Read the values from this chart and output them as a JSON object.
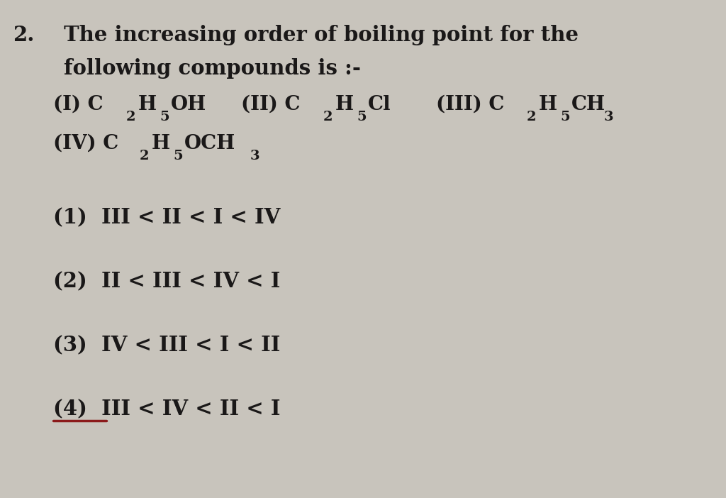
{
  "background_color": "#c8c4bc",
  "question_number": "2.",
  "title_line1": "The increasing order of boiling point for the",
  "title_line2": "following compounds is :-",
  "text_color": "#1a1818",
  "underline_color": "#8b1a1a",
  "fontsize_title": 21,
  "fontsize_options": 21,
  "fontsize_chem": 20,
  "fontsize_sub": 14,
  "option_numbers": [
    "(1)",
    "(2)",
    "(3)",
    "(4)"
  ],
  "option_texts": [
    "III < II < I < IV",
    "II < III < IV < I",
    "IV < III < I < II",
    "III < IV < II < I"
  ],
  "underline_index": 3
}
